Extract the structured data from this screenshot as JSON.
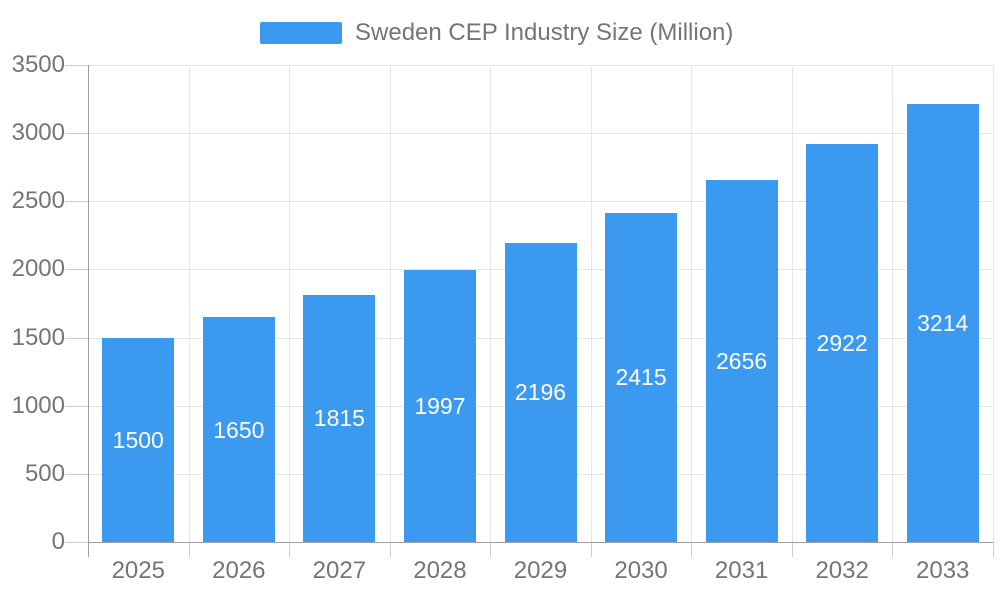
{
  "legend": {
    "label": "Sweden CEP Industry Size (Million)"
  },
  "chart_data": {
    "type": "bar",
    "title": "Sweden CEP Industry Size (Million)",
    "categories": [
      "2025",
      "2026",
      "2027",
      "2028",
      "2029",
      "2030",
      "2031",
      "2032",
      "2033"
    ],
    "series": [
      {
        "name": "Sweden CEP Industry Size (Million)",
        "values": [
          1500,
          1650,
          1815,
          1997,
          2196,
          2415,
          2656,
          2922,
          3214
        ]
      }
    ],
    "xlabel": "",
    "ylabel": "",
    "ylim": [
      0,
      3500
    ],
    "yticks": [
      0,
      500,
      1000,
      1500,
      2000,
      2500,
      3000,
      3500
    ],
    "grid": true,
    "legend_position": "top-center",
    "colors": {
      "bar": "#3B99F0",
      "bar_label_text": "#ffffff",
      "axis_text": "#757575",
      "grid_line": "#E6E6E6",
      "tick_line": "#CCCCCC",
      "axis_line": "#9E9E9E",
      "background": "#ffffff"
    }
  }
}
